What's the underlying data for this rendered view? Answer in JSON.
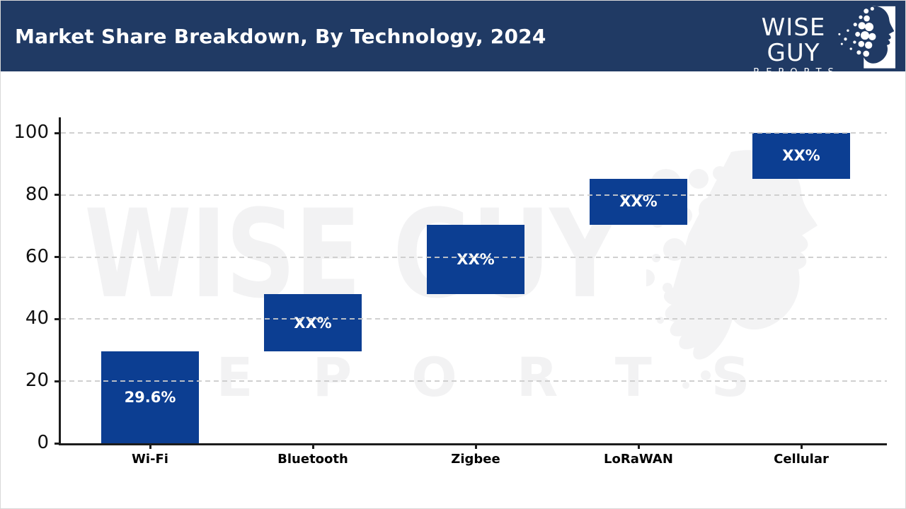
{
  "header": {
    "title": "Market Share Breakdown, By Technology, 2024",
    "logo": {
      "line1": "WISE GUY",
      "line2": "REPORTS"
    }
  },
  "watermark": {
    "line1": "WISE GUY",
    "line2": "REPORTS"
  },
  "colors": {
    "header_bg": "#203a64",
    "bar": "#0c3e92",
    "bar_label_text": "#ffffff",
    "gridline": "#cbcbcb",
    "axis": "#1c1c1c",
    "watermark": "#f2f2f3"
  },
  "chart_data": {
    "type": "bar",
    "subtype": "waterfall",
    "title": "Market Share Breakdown, By Technology, 2024",
    "categories": [
      "Wi-Fi",
      "Bluetooth",
      "Zigbee",
      "LoRaWAN",
      "Cellular"
    ],
    "bars": [
      {
        "category": "Wi-Fi",
        "start": 0,
        "end": 29.6,
        "label": "29.6%"
      },
      {
        "category": "Bluetooth",
        "start": 29.6,
        "end": 48.0,
        "label": "XX%"
      },
      {
        "category": "Zigbee",
        "start": 48.0,
        "end": 70.4,
        "label": "XX%"
      },
      {
        "category": "LoRaWAN",
        "start": 70.4,
        "end": 85.2,
        "label": "XX%"
      },
      {
        "category": "Cellular",
        "start": 85.2,
        "end": 100,
        "label": "XX%"
      }
    ],
    "xlabel": "",
    "ylabel": "",
    "ylim": [
      0,
      100
    ],
    "yticks": [
      0,
      20,
      40,
      60,
      80,
      100
    ],
    "grid": "horizontal-dashed",
    "legend": "none",
    "bar_color": "#0c3e92"
  }
}
